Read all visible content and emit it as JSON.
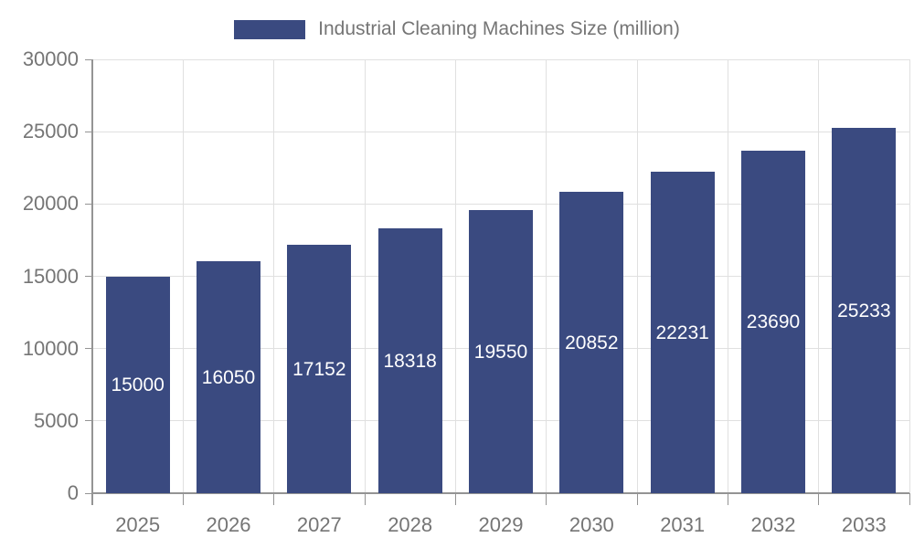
{
  "legend": {
    "label": "Industrial Cleaning Machines Size (million)"
  },
  "chart_data": {
    "type": "bar",
    "title": "Industrial Cleaning Machines Size (million)",
    "categories": [
      "2025",
      "2026",
      "2027",
      "2028",
      "2029",
      "2030",
      "2031",
      "2032",
      "2033"
    ],
    "values": [
      15000,
      16050,
      17152,
      18318,
      19550,
      20852,
      22231,
      23690,
      25233
    ],
    "xlabel": "",
    "ylabel": "",
    "ylim": [
      0,
      30000
    ],
    "yticks": [
      0,
      5000,
      10000,
      15000,
      20000,
      25000,
      30000
    ],
    "grid": true,
    "legend_position": "top",
    "value_labels": "inside-center",
    "colors": {
      "bar": "#3A4A80",
      "value_label": "#ffffff",
      "axis_text": "#757575",
      "grid_line": "#e0e0e0",
      "axis_line": "#949494",
      "background": "#ffffff"
    }
  }
}
